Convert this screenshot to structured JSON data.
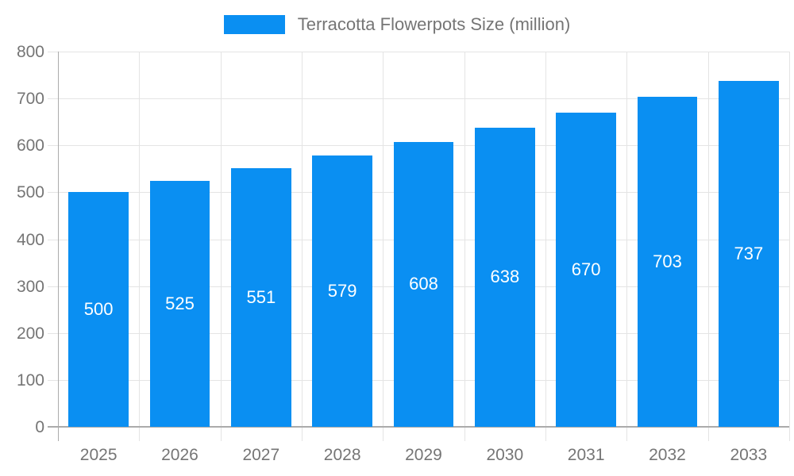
{
  "chart_data": {
    "type": "bar",
    "title": "Terracotta Flowerpots Size (million)",
    "categories": [
      "2025",
      "2026",
      "2027",
      "2028",
      "2029",
      "2030",
      "2031",
      "2032",
      "2033"
    ],
    "values": [
      500,
      525,
      551,
      579,
      608,
      638,
      670,
      703,
      737
    ],
    "xlabel": "",
    "ylabel": "",
    "ylim": [
      0,
      800
    ],
    "ytick_step": 100,
    "ytick_labels": [
      "0",
      "100",
      "200",
      "300",
      "400",
      "500",
      "600",
      "700",
      "800"
    ],
    "grid": true,
    "legend_position": "top-center",
    "value_labels": "centered-inside-bars",
    "colors": {
      "bar": "#0a8ff2",
      "value_label": "#ffffff",
      "axis_text": "#757575",
      "gridline": "#e4e4e4",
      "axis_line": "#ababab",
      "background": "#ffffff"
    }
  }
}
